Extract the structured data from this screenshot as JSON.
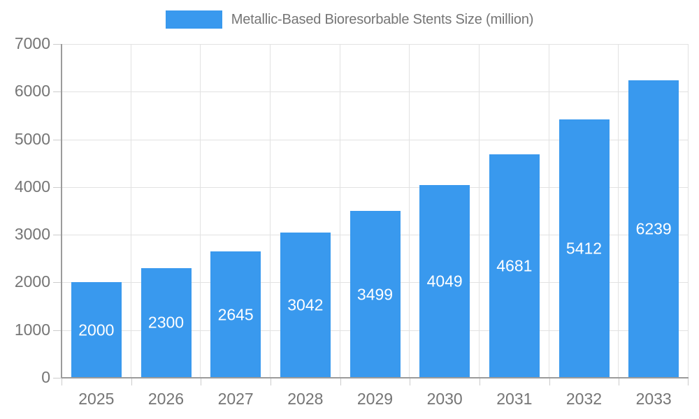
{
  "chart_data": {
    "type": "bar",
    "title": "Metallic-Based Bioresorbable Stents Size (million)",
    "legend_entries": [
      "Metallic-Based Bioresorbable Stents Size (million)"
    ],
    "legend_position": "top-center",
    "categories": [
      "2025",
      "2026",
      "2027",
      "2028",
      "2029",
      "2030",
      "2031",
      "2032",
      "2033"
    ],
    "values": [
      2000,
      2300,
      2645,
      3042,
      3499,
      4049,
      4681,
      5412,
      6239
    ],
    "xlabel": "",
    "ylabel": "",
    "ylim": [
      0,
      7000
    ],
    "yticks": [
      0,
      1000,
      2000,
      3000,
      4000,
      5000,
      6000,
      7000
    ],
    "grid": true,
    "value_label_position": "inside-center",
    "colors": {
      "bar": "#3999EE",
      "grid": "#e2e2e2",
      "axis_line": "#9b9b9b",
      "tick": "#cccccc",
      "text": "#757575",
      "value_label": "#ffffff",
      "background": "#ffffff"
    }
  }
}
